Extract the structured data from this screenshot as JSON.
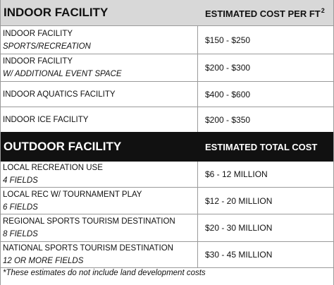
{
  "indoor": {
    "header_left": "INDOOR FACILITY",
    "header_right": "ESTIMATED COST PER FT",
    "header_right_sup": "2",
    "rows": [
      {
        "name": "INDOOR FACILITY",
        "sub": "SPORTS/RECREATION",
        "cost": "$150 - $250"
      },
      {
        "name": "INDOOR FACILITY",
        "sub": "W/ ADDITIONAL EVENT SPACE",
        "cost": "$200 - $300"
      },
      {
        "name": "INDOOR AQUATICS FACILITY",
        "sub": "",
        "cost": "$400 - $600"
      },
      {
        "name": "INDOOR ICE FACILITY",
        "sub": "",
        "cost": "$200 - $350"
      }
    ]
  },
  "outdoor": {
    "header_left": "OUTDOOR FACILITY",
    "header_right": "ESTIMATED TOTAL COST",
    "rows": [
      {
        "name": "LOCAL RECREATION USE",
        "sub": "4 FIELDS",
        "cost": "$6 - 12 MILLION"
      },
      {
        "name": "LOCAL REC W/ TOURNAMENT PLAY",
        "sub": "6 FIELDS",
        "cost": "$12 - 20 MILLION"
      },
      {
        "name": "REGIONAL SPORTS TOURISM DESTINATION",
        "sub": "8 FIELDS",
        "cost": "$20 - 30 MILLION"
      },
      {
        "name": "NATIONAL SPORTS TOURISM DESTINATION",
        "sub": "12 OR MORE FIELDS",
        "cost": "$30 - 45 MILLION"
      }
    ]
  },
  "footnote": "*These estimates do not include land development costs"
}
